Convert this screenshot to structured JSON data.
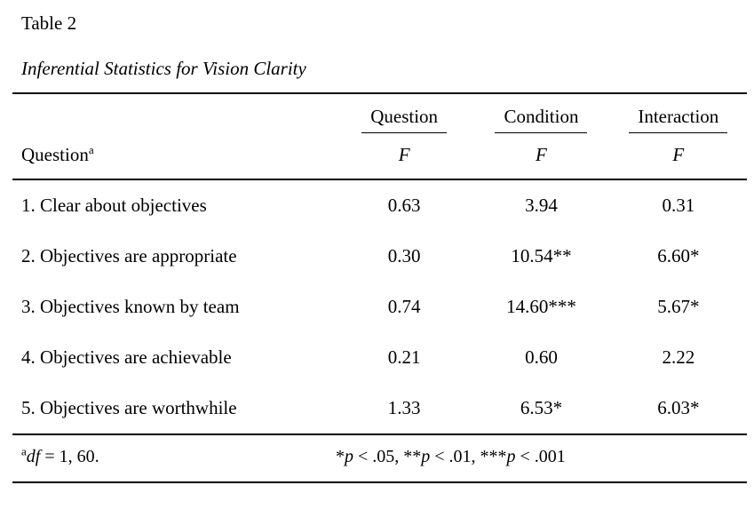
{
  "table_label": "Table 2",
  "table_title": "Inferential Statistics for Vision Clarity",
  "header": {
    "groups": [
      "Question",
      "Condition",
      "Interaction"
    ],
    "row_label": "Question",
    "row_label_sup": "a",
    "f_labels": [
      "F",
      "F",
      "F"
    ]
  },
  "rows": [
    {
      "label": "1. Clear about objectives",
      "question_f": "0.63",
      "condition_f": "3.94",
      "interaction_f": "0.31"
    },
    {
      "label": "2. Objectives are appropriate",
      "question_f": "0.30",
      "condition_f": "10.54**",
      "interaction_f": "6.60*"
    },
    {
      "label": "3. Objectives known by team",
      "question_f": "0.74",
      "condition_f": "14.60***",
      "interaction_f": "5.67*"
    },
    {
      "label": "4. Objectives are achievable",
      "question_f": "0.21",
      "condition_f": "0.60",
      "interaction_f": "2.22"
    },
    {
      "label": "5. Objectives are worthwhile",
      "question_f": "1.33",
      "condition_f": "6.53*",
      "interaction_f": "6.03*"
    }
  ],
  "footnotes": {
    "df_sup": "a",
    "df_italic": "df",
    "df_rest": " = 1, 60.",
    "sig": [
      {
        "stars": "*",
        "p": "p",
        "rest": " < .05, "
      },
      {
        "stars": "**",
        "p": "p",
        "rest": " < .01, "
      },
      {
        "stars": "***",
        "p": "p",
        "rest": " < .001"
      }
    ]
  },
  "colors": {
    "text": "#000000",
    "background": "#ffffff",
    "rule": "#000000"
  }
}
